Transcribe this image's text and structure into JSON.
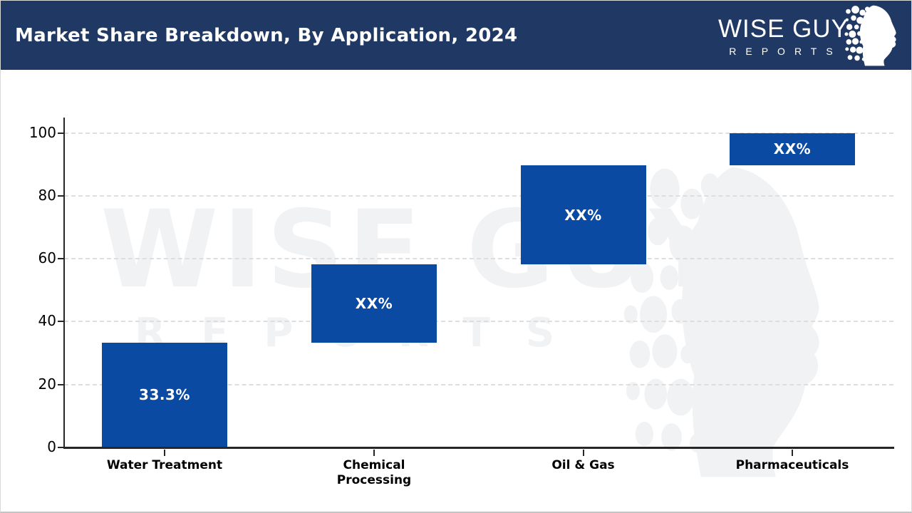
{
  "header": {
    "title": "Market Share Breakdown, By Application, 2024",
    "bg_color": "#1f3864",
    "logo": {
      "line1": "WISE GUY",
      "line2": "REPORTS"
    }
  },
  "watermark": {
    "line1": "WISE GUY",
    "line2": "REPORTS"
  },
  "chart_data": {
    "type": "bar",
    "subtype": "floating-waterfall",
    "title": "Market Share Breakdown, By Application, 2024",
    "categories": [
      "Water Treatment",
      "Chemical Processing",
      "Oil & Gas",
      "Pharmaceuticals"
    ],
    "segments": [
      {
        "category": "Water Treatment",
        "start": 0,
        "end": 33.3,
        "label": "33.3%"
      },
      {
        "category": "Chemical Processing",
        "start": 33.3,
        "end": 58.3,
        "label": "XX%"
      },
      {
        "category": "Oil & Gas",
        "start": 58.3,
        "end": 89.6,
        "label": "XX%"
      },
      {
        "category": "Pharmaceuticals",
        "start": 89.6,
        "end": 100,
        "label": "XX%"
      }
    ],
    "xlabel": "",
    "ylabel": "",
    "ylim": [
      0,
      100
    ],
    "yticks": [
      0,
      20,
      40,
      60,
      80,
      100
    ],
    "grid": "horizontal-dashed",
    "legend": "none",
    "bar_color": "#0b4aa2",
    "bar_label_color": "#ffffff",
    "axis_color": "#262626",
    "gridline_color": "#dedede"
  }
}
